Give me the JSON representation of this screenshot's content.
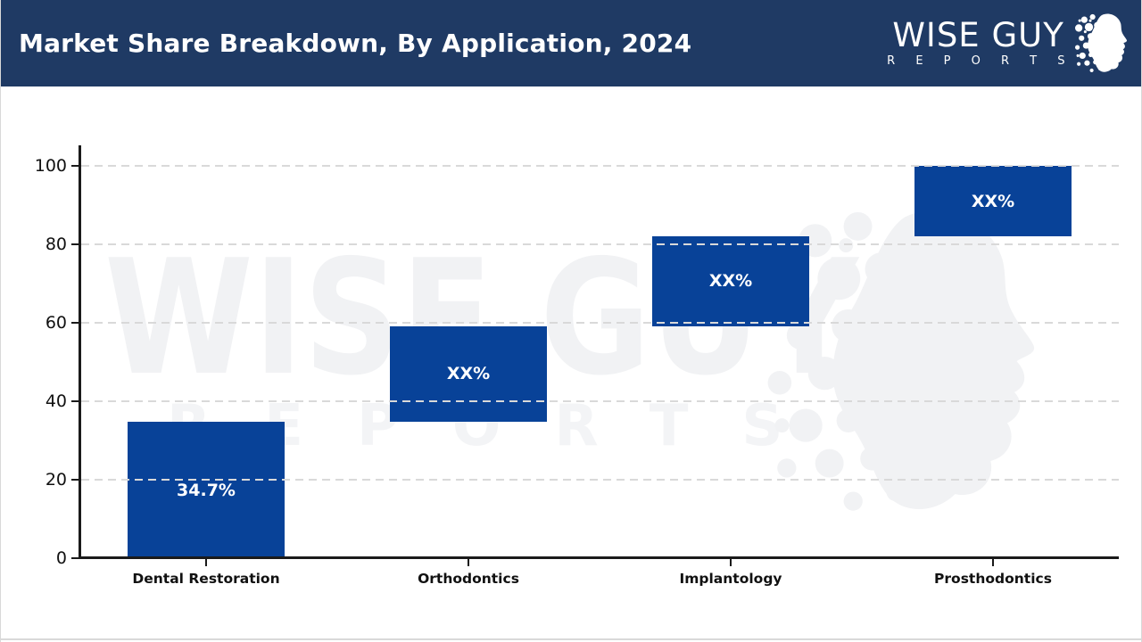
{
  "header": {
    "title": "Market Share Breakdown, By Application, 2024",
    "bg_color": "#1f3a64",
    "logo": {
      "line1": "WISE GUY",
      "line2": "R E P O R T S"
    }
  },
  "watermark": {
    "line1": "WISE GUY",
    "line2": "REPORTS"
  },
  "chart_data": {
    "type": "bar",
    "subtype": "waterfall",
    "title": "Market Share Breakdown, By Application, 2024",
    "categories": [
      "Dental Restoration",
      "Orthodontics",
      "Implantology",
      "Prosthodontics"
    ],
    "segments": [
      {
        "category": "Dental Restoration",
        "start": 0,
        "end": 34.7,
        "label": "34.7%"
      },
      {
        "category": "Orthodontics",
        "start": 34.7,
        "end": 59.2,
        "label": "XX%"
      },
      {
        "category": "Implantology",
        "start": 59.2,
        "end": 82.0,
        "label": "XX%"
      },
      {
        "category": "Prosthodontics",
        "start": 82.0,
        "end": 100.0,
        "label": "XX%"
      }
    ],
    "y_ticks": [
      0,
      20,
      40,
      60,
      80,
      100
    ],
    "ylim": [
      0,
      105
    ],
    "xlabel": "",
    "ylabel": "",
    "grid": "dashed horizontal, drawn over bars",
    "legend": "none",
    "bar_color": "#084298",
    "bar_label_color": "#ffffff",
    "axis_color": "#1a1a1a",
    "grid_color": "#d9d9d9"
  }
}
